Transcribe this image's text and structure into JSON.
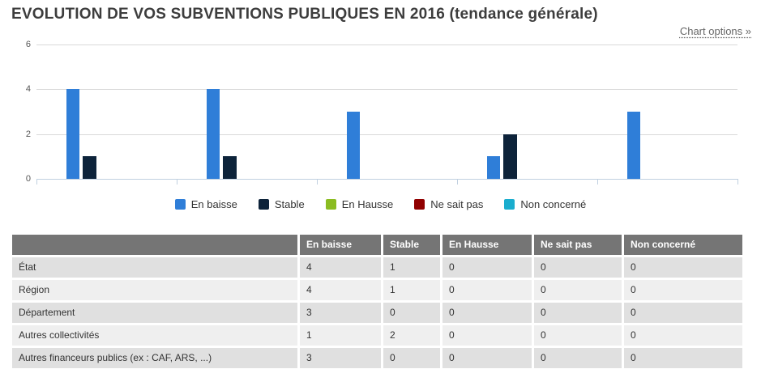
{
  "page": {
    "title": "EVOLUTION DE VOS SUBVENTIONS PUBLIQUES EN 2016 (tendance générale)",
    "chart_options_label": "Chart options »"
  },
  "chart_data": {
    "type": "bar",
    "title": "EVOLUTION DE VOS SUBVENTIONS PUBLIQUES EN 2016 (tendance générale)",
    "categories": [
      "État",
      "Région",
      "Département",
      "Autres collectivités",
      "Autres financeurs publics (ex : CAF, ARS, ...)"
    ],
    "series": [
      {
        "name": "En baisse",
        "color": "#2f7ed8",
        "values": [
          4,
          4,
          3,
          1,
          3
        ]
      },
      {
        "name": "Stable",
        "color": "#0d233a",
        "values": [
          1,
          1,
          0,
          2,
          0
        ]
      },
      {
        "name": "En Hausse",
        "color": "#8bbc21",
        "values": [
          0,
          0,
          0,
          0,
          0
        ]
      },
      {
        "name": "Ne sait pas",
        "color": "#910000",
        "values": [
          0,
          0,
          0,
          0,
          0
        ]
      },
      {
        "name": "Non concerné",
        "color": "#1aadce",
        "values": [
          0,
          0,
          0,
          0,
          0
        ]
      }
    ],
    "ylim": [
      0,
      6
    ],
    "yticks": [
      0,
      2,
      4,
      6
    ],
    "grid": true,
    "legend_position": "bottom",
    "xlabel": "",
    "ylabel": ""
  },
  "table": {
    "columns": [
      "",
      "En baisse",
      "Stable",
      "En Hausse",
      "Ne sait pas",
      "Non concerné"
    ],
    "rows": [
      {
        "label": "État",
        "values": [
          4,
          1,
          0,
          0,
          0
        ]
      },
      {
        "label": "Région",
        "values": [
          4,
          1,
          0,
          0,
          0
        ]
      },
      {
        "label": "Département",
        "values": [
          3,
          0,
          0,
          0,
          0
        ]
      },
      {
        "label": "Autres collectivités",
        "values": [
          1,
          2,
          0,
          0,
          0
        ]
      },
      {
        "label": "Autres financeurs publics (ex : CAF, ARS, ...)",
        "values": [
          3,
          0,
          0,
          0,
          0
        ]
      }
    ]
  }
}
